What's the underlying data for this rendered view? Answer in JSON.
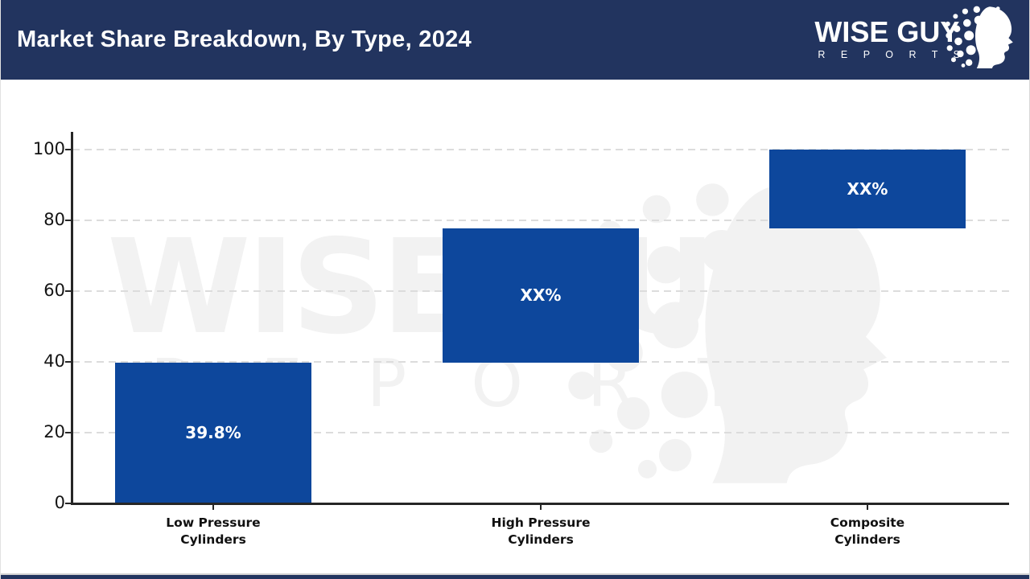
{
  "header": {
    "title": "Market Share Breakdown, By Type, 2024",
    "bg_color": "#22345f",
    "logo": {
      "line1": "WISE GUY",
      "line2": "R E P O R T S"
    }
  },
  "watermark": {
    "line1": "WISE GUY",
    "line2": "R E P O R T S",
    "color": "#f2f2f2"
  },
  "chart_data": {
    "type": "bar",
    "variant": "waterfall",
    "title": "Market Share Breakdown, By Type, 2024",
    "categories": [
      "Low Pressure\nCylinders",
      "High Pressure\nCylinders",
      "Composite\nCylinders"
    ],
    "bars": [
      {
        "start": 0,
        "end": 39.8,
        "label": "39.8%"
      },
      {
        "start": 39.8,
        "end": 77.8,
        "label": "XX%"
      },
      {
        "start": 77.8,
        "end": 100,
        "label": "XX%"
      }
    ],
    "yticks": [
      0,
      20,
      40,
      60,
      80,
      100
    ],
    "ylim": [
      0,
      105
    ],
    "xlabel": "",
    "ylabel": "",
    "legend": "none",
    "grid": "horizontal-dashed",
    "bar_color": "#0d479c",
    "grid_color": "#dcdcdc",
    "value_label_color": "#ffffff"
  },
  "footer": {
    "bar_color": "#22345f"
  }
}
